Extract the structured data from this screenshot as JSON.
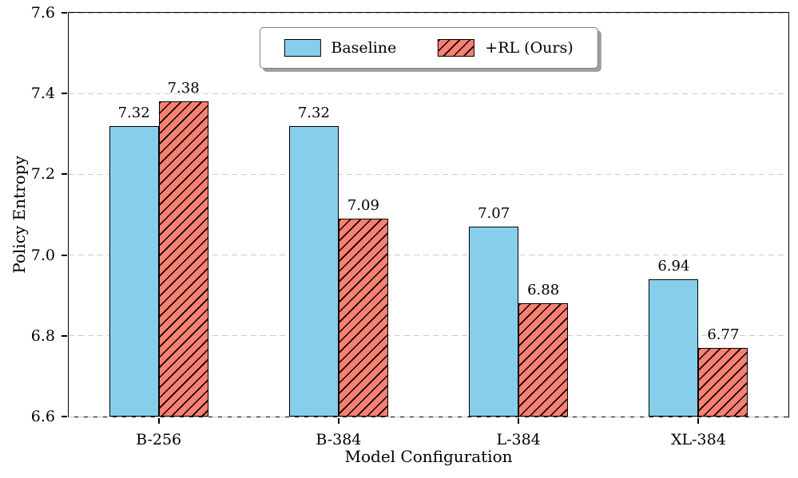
{
  "chart_data": {
    "type": "bar",
    "title": "",
    "xlabel": "Model Configuration",
    "ylabel": "Policy Entropy",
    "categories": [
      "B-256",
      "B-384",
      "L-384",
      "XL-384"
    ],
    "series": [
      {
        "name": "Baseline",
        "values": [
          7.32,
          7.32,
          7.07,
          6.94
        ],
        "color": "#87CEEB",
        "hatch": false
      },
      {
        "name": "+RL (Ours)",
        "values": [
          7.38,
          7.09,
          6.88,
          6.77
        ],
        "color": "#FA8072",
        "hatch": true
      }
    ],
    "ylim": [
      6.6,
      7.6
    ],
    "yticks": [
      6.6,
      6.8,
      7.0,
      7.2,
      7.4,
      7.6
    ],
    "ytick_decimals": 1,
    "value_label_decimals": 2,
    "grid": true,
    "grid_style": "dashed",
    "grid_color": "#cbcbcb",
    "bar_edge_color": "#000000",
    "legend_position": "upper center"
  }
}
